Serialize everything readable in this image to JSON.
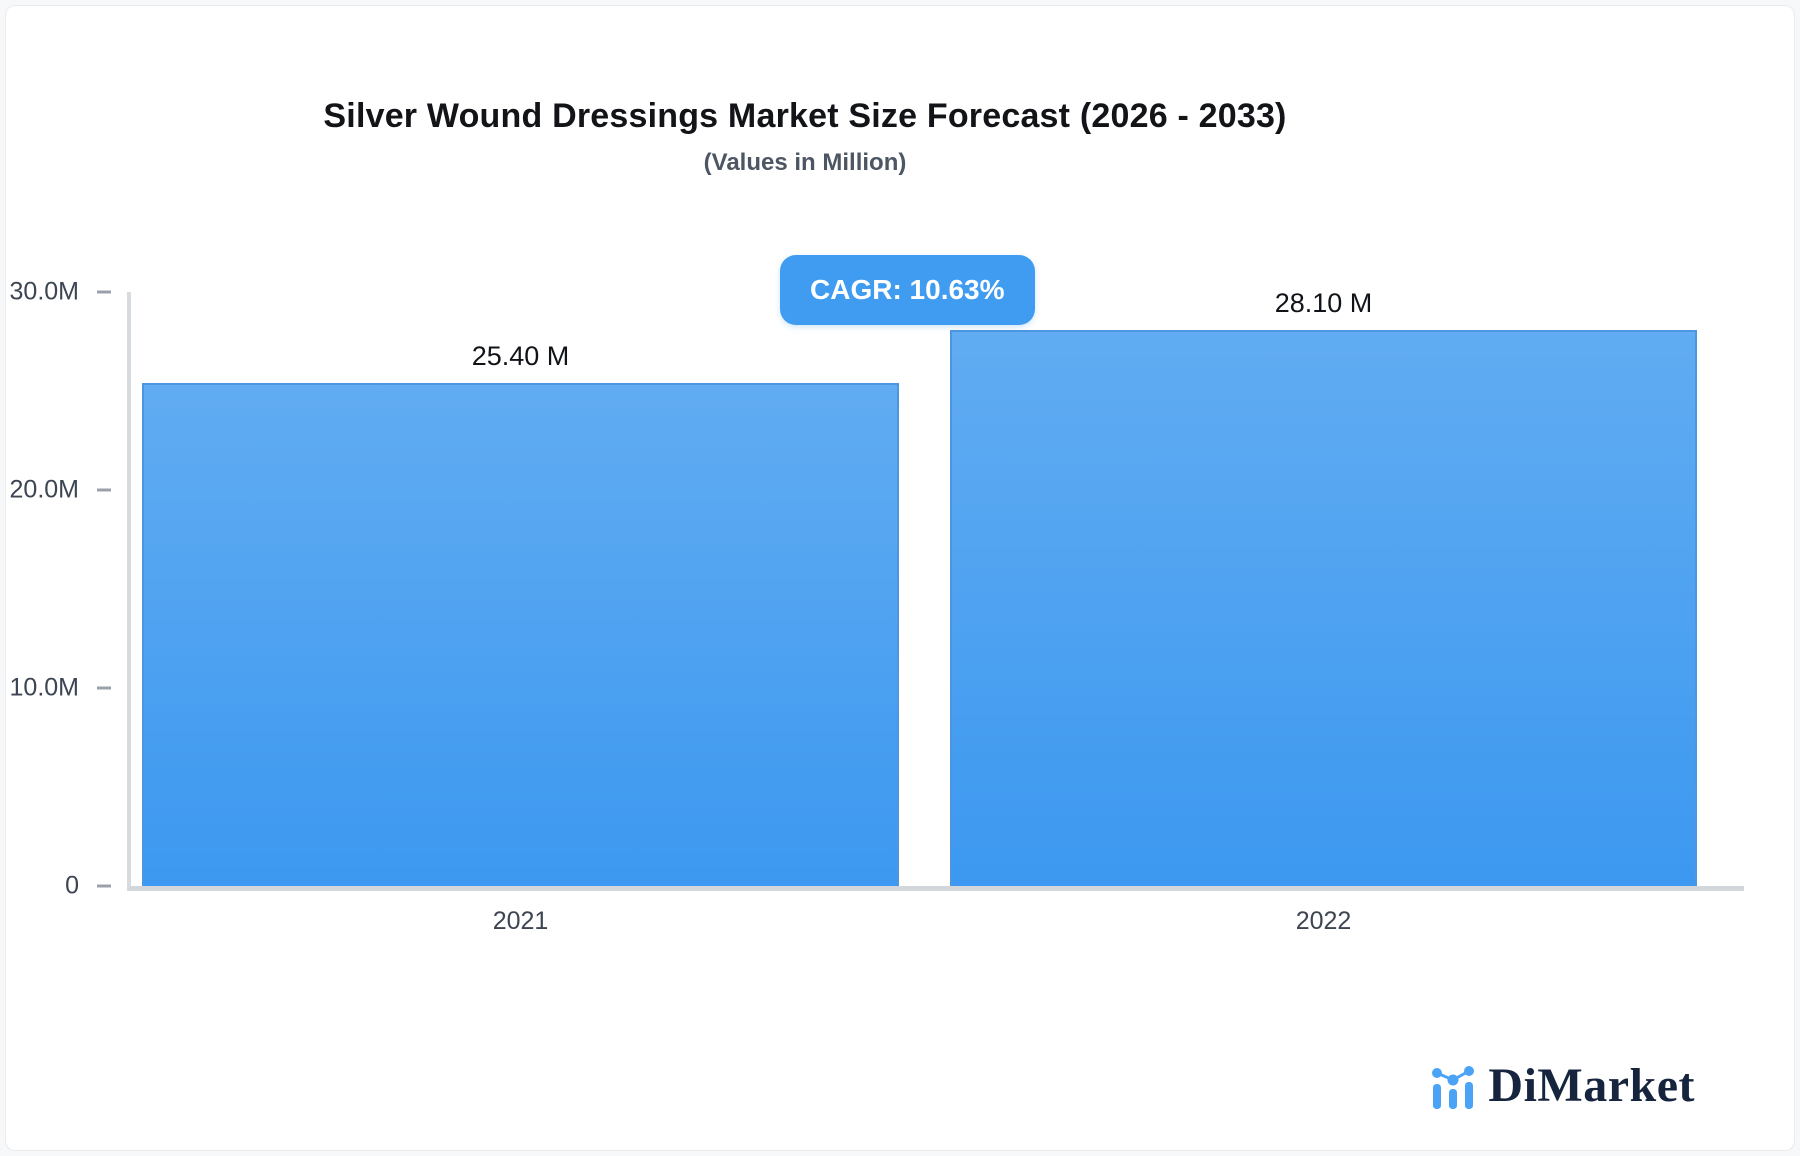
{
  "chart_data": {
    "type": "bar",
    "title": "Silver Wound Dressings Market Size Forecast (2026 - 2033)",
    "subtitle": "(Values in Million)",
    "cagr_badge": "CAGR: 10.63%",
    "categories": [
      "2021",
      "2022"
    ],
    "values": [
      25.4,
      28.1
    ],
    "value_labels": [
      "25.40 M",
      "28.10 M"
    ],
    "unit": "Million",
    "ylim": [
      0,
      30
    ],
    "ytick_labels": [
      "30.0M",
      "20.0M",
      "10.0M",
      "0"
    ],
    "grid": "off",
    "legend": "none",
    "layout": {
      "bar_gap": "narrow",
      "value_labels_position": "above-bar",
      "badge_position": "top-center-over-plot"
    },
    "colors": {
      "bar_gradient_top": "#61ACF2",
      "bar_gradient_bottom": "#3C98F0",
      "bar_border": "#4C96E2",
      "badge_bg": "#3F9CF0",
      "badge_text": "#FFFFFF",
      "axis_line": "#D7DADE",
      "tick_text": "#3D4553",
      "title_text": "#121418",
      "card_bg": "#FFFFFF",
      "page_bg": "#F7F8FA"
    }
  },
  "branding": {
    "logo_text": "DiMarket",
    "logo_icon": "bar-chart-logo-icon",
    "logo_text_color": "#16243E",
    "logo_icon_color": "#4BA3F5"
  }
}
